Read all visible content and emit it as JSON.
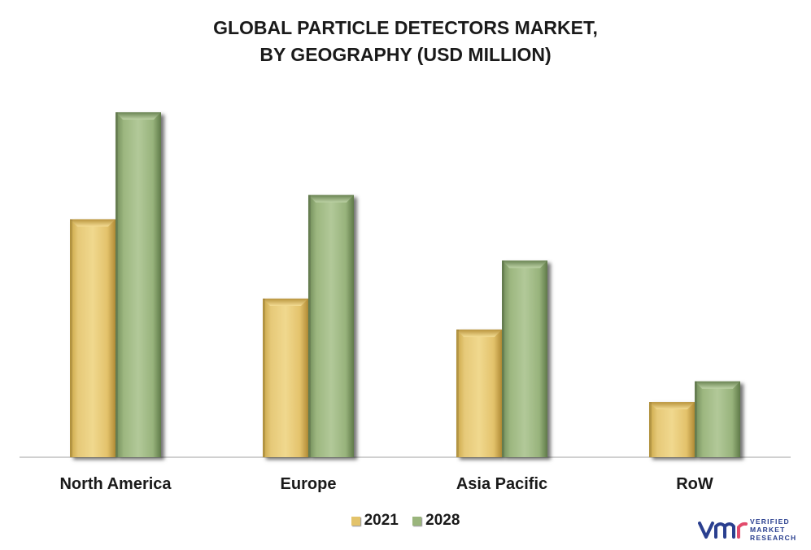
{
  "chart_data": {
    "type": "bar",
    "title_lines": [
      "GLOBAL PARTICLE DETECTORS MARKET,",
      "BY GEOGRAPHY (USD MILLION)"
    ],
    "categories": [
      "North America",
      "Europe",
      "Asia Pacific",
      "RoW"
    ],
    "series": [
      {
        "name": "2021",
        "values": [
          69,
          46,
          37,
          16
        ],
        "color": "#e3c36a"
      },
      {
        "name": "2028",
        "values": [
          100,
          76,
          57,
          22
        ],
        "color": "#9ab57c"
      }
    ],
    "ylim": [
      0,
      100
    ],
    "grid": false,
    "legend_position": "bottom-center"
  },
  "logo": {
    "text_lines": [
      "VERIFIED",
      "MARKET",
      "RESEARCH"
    ],
    "colors": [
      "#2a3f8f",
      "#e24b6c"
    ]
  }
}
